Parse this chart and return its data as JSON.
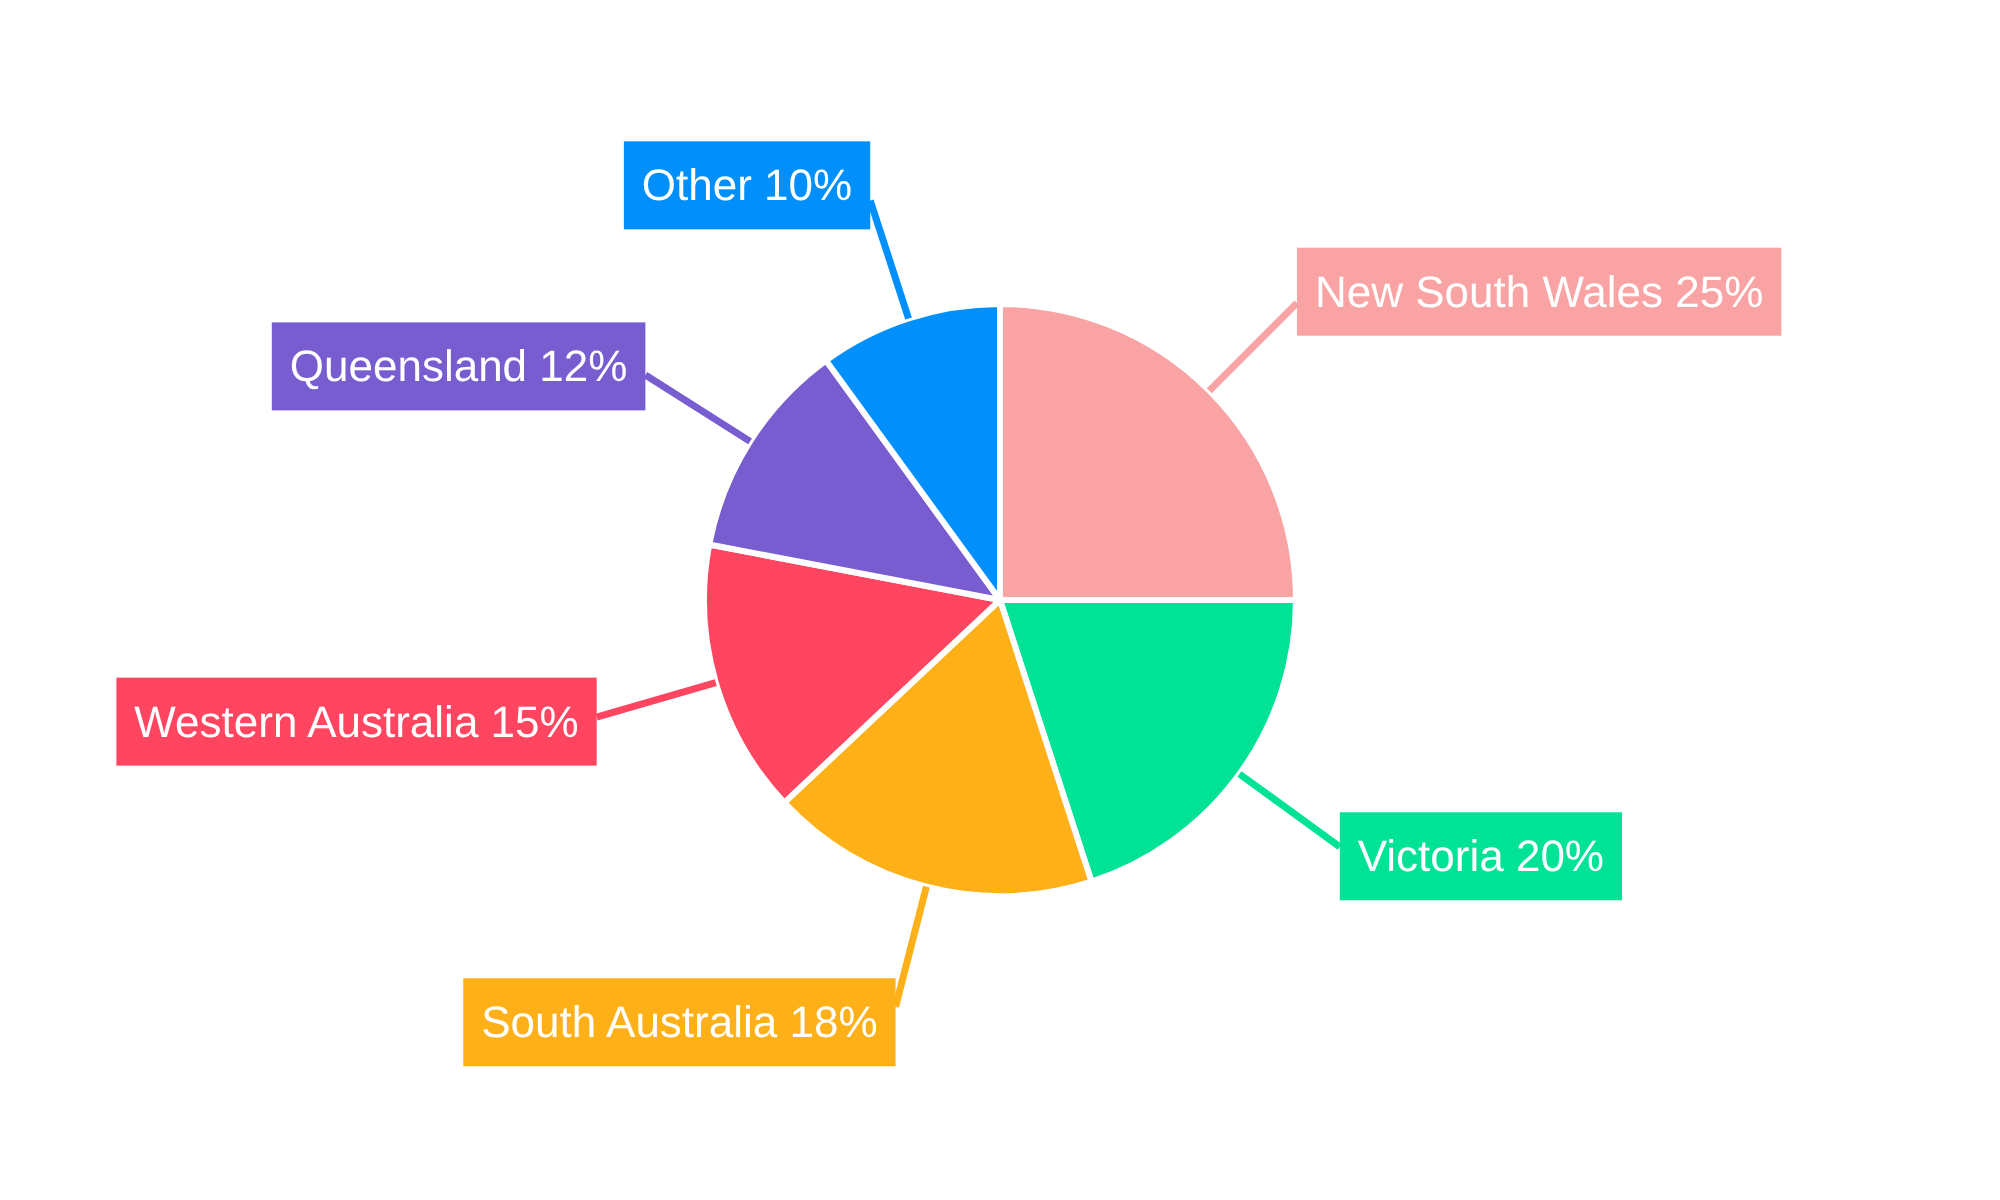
{
  "chart_data": {
    "type": "pie",
    "categories": [
      "New South Wales",
      "Victoria",
      "South Australia",
      "Western Australia",
      "Queensland",
      "Other"
    ],
    "values": [
      25,
      20,
      18,
      15,
      12,
      10
    ],
    "colors": [
      "#f9a3a4",
      "#00e396",
      "#feb019",
      "#ff4560",
      "#775dd0",
      "#008ffb"
    ],
    "value_labels": [
      "25%",
      "20%",
      "18%",
      "15%",
      "12%",
      "10%"
    ]
  }
}
